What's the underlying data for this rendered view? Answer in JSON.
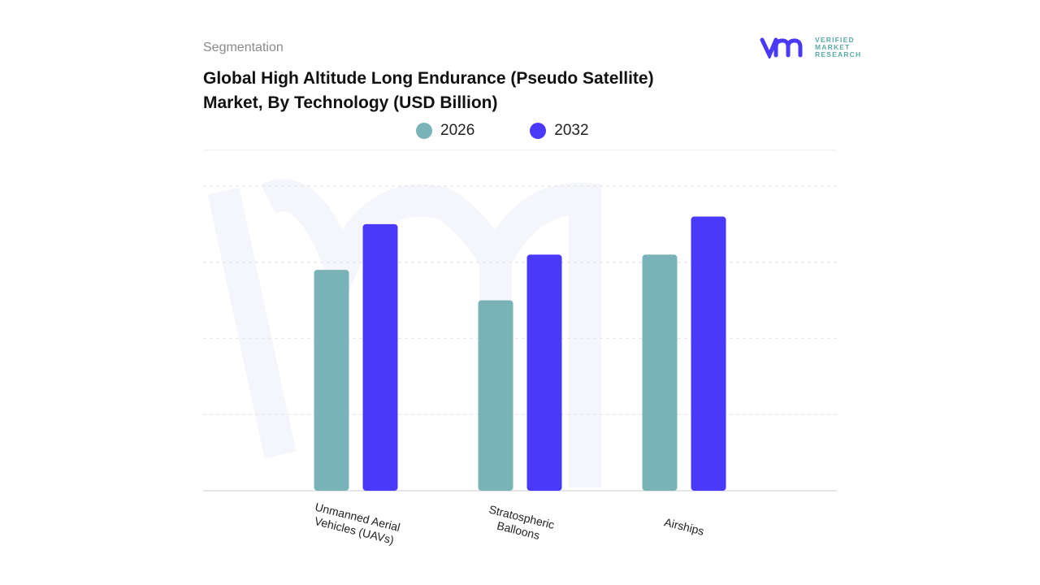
{
  "header": {
    "section": "Segmentation",
    "title_line1": "Global High Altitude Long Endurance (Pseudo Satellite)",
    "title_line2": "Market, By Technology (USD Billion)"
  },
  "logo": {
    "line1": "VERIFIED",
    "line2": "MARKET",
    "line3": "RESEARCH"
  },
  "colors": {
    "2026": "#7ab3b7",
    "2032": "#4b39fa"
  },
  "chart_data": {
    "type": "bar",
    "title": "Global High Altitude Long Endurance (Pseudo Satellite) Market, By Technology (USD Billion)",
    "categories": [
      "Unmanned Aerial Vehicles (UAVs)",
      "Stratospheric Balloons",
      "Airships"
    ],
    "category_lines": [
      [
        "Unmanned Aerial",
        "Vehicles (UAVs)"
      ],
      [
        "Stratospheric",
        "Balloons"
      ],
      [
        "Airships"
      ]
    ],
    "series": [
      {
        "name": "2026",
        "color": "#7ab3b7",
        "values": [
          2.9,
          2.5,
          3.1
        ]
      },
      {
        "name": "2032",
        "color": "#4b39fa",
        "values": [
          3.5,
          3.1,
          3.6
        ]
      }
    ],
    "ylim": [
      0,
      4
    ],
    "grid": true,
    "legend": "top-center",
    "xlabel": "",
    "ylabel": ""
  }
}
